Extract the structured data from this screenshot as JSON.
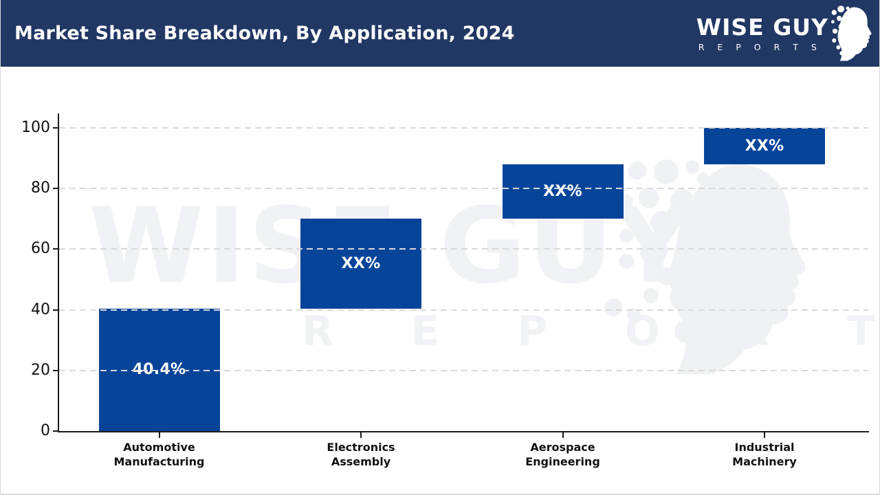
{
  "header": {
    "title": "Market Share Breakdown, By Application, 2024",
    "logo": {
      "brand_line1": "WISE GUY",
      "brand_line2": "R E P O R T S"
    }
  },
  "watermark": {
    "line1": "WISE GUY",
    "line2": "R E P O R T S"
  },
  "colors": {
    "header_bg": "#213764",
    "bar": "#06449a",
    "bar_label": "#ffffff",
    "grid": "#d9d9d9",
    "axis": "#1a1a1a",
    "watermark": "#f0f1f4",
    "page_bg": "#ffffff"
  },
  "chart_data": {
    "type": "bar",
    "subtype": "waterfall",
    "title": "Market Share Breakdown, By Application, 2024",
    "categories": [
      "Automotive Manufacturing",
      "Electronics Assembly",
      "Aerospace Engineering",
      "Industrial Machinery"
    ],
    "category_label_lines": [
      [
        "Automotive",
        "Manufacturing"
      ],
      [
        "Electronics",
        "Assembly"
      ],
      [
        "Aerospace",
        "Engineering"
      ],
      [
        "Industrial",
        "Machinery"
      ]
    ],
    "segments": [
      {
        "category": "Automotive Manufacturing",
        "start": 0,
        "end": 40.4,
        "label": "40.4%"
      },
      {
        "category": "Electronics Assembly",
        "start": 40.4,
        "end": 70,
        "label": "XX%"
      },
      {
        "category": "Aerospace Engineering",
        "start": 70,
        "end": 88,
        "label": "XX%"
      },
      {
        "category": "Industrial Machinery",
        "start": 88,
        "end": 100,
        "label": "XX%"
      }
    ],
    "xlabel": "",
    "ylabel": "",
    "ylim": [
      0,
      100
    ],
    "yticks": [
      0,
      20,
      40,
      60,
      80,
      100
    ],
    "grid": "horizontal-dashed",
    "legend": "none"
  }
}
